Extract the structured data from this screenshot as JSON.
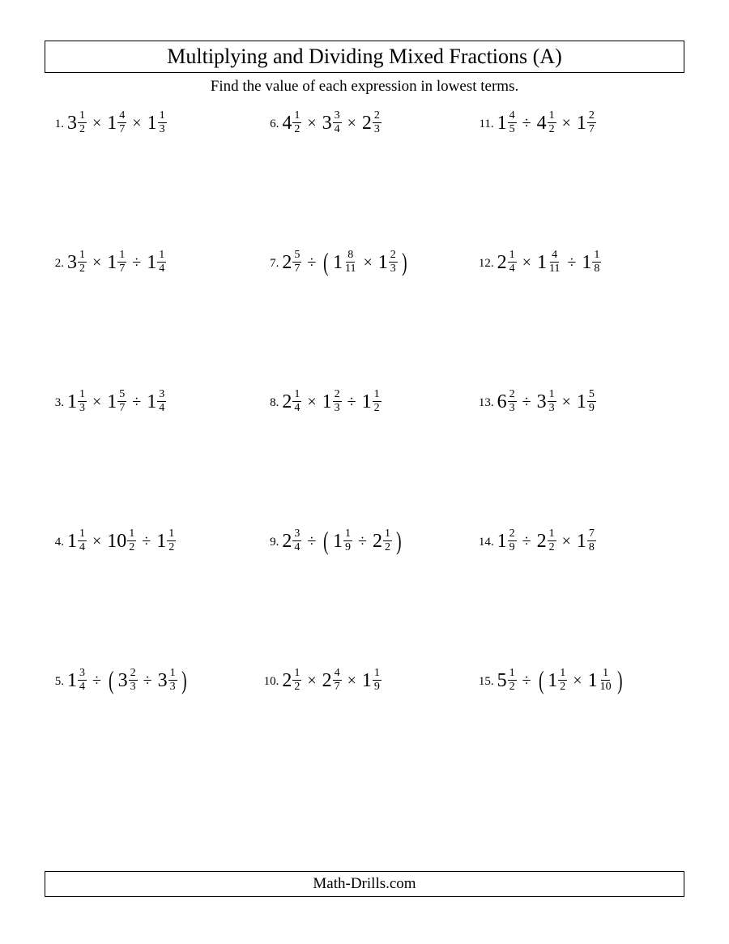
{
  "title": "Multiplying and Dividing Mixed Fractions (A)",
  "subtitle": "Find the value of each expression in lowest terms.",
  "footer": "Math-Drills.com",
  "operators": {
    "mult": "×",
    "div": "÷"
  },
  "problems": [
    {
      "n": "1.",
      "parts": [
        {
          "t": "m",
          "w": "3",
          "a": "1",
          "b": "2"
        },
        {
          "t": "op",
          "v": "mult"
        },
        {
          "t": "m",
          "w": "1",
          "a": "4",
          "b": "7"
        },
        {
          "t": "op",
          "v": "mult"
        },
        {
          "t": "m",
          "w": "1",
          "a": "1",
          "b": "3"
        }
      ]
    },
    {
      "n": "2.",
      "parts": [
        {
          "t": "m",
          "w": "3",
          "a": "1",
          "b": "2"
        },
        {
          "t": "op",
          "v": "mult"
        },
        {
          "t": "m",
          "w": "1",
          "a": "1",
          "b": "7"
        },
        {
          "t": "op",
          "v": "div"
        },
        {
          "t": "m",
          "w": "1",
          "a": "1",
          "b": "4"
        }
      ]
    },
    {
      "n": "3.",
      "parts": [
        {
          "t": "m",
          "w": "1",
          "a": "1",
          "b": "3"
        },
        {
          "t": "op",
          "v": "mult"
        },
        {
          "t": "m",
          "w": "1",
          "a": "5",
          "b": "7"
        },
        {
          "t": "op",
          "v": "div"
        },
        {
          "t": "m",
          "w": "1",
          "a": "3",
          "b": "4"
        }
      ]
    },
    {
      "n": "4.",
      "parts": [
        {
          "t": "m",
          "w": "1",
          "a": "1",
          "b": "4"
        },
        {
          "t": "op",
          "v": "mult"
        },
        {
          "t": "m",
          "w": "10",
          "a": "1",
          "b": "2"
        },
        {
          "t": "op",
          "v": "div"
        },
        {
          "t": "m",
          "w": "1",
          "a": "1",
          "b": "2"
        }
      ]
    },
    {
      "n": "5.",
      "parts": [
        {
          "t": "m",
          "w": "1",
          "a": "3",
          "b": "4"
        },
        {
          "t": "op",
          "v": "div"
        },
        {
          "t": "lp"
        },
        {
          "t": "m",
          "w": "3",
          "a": "2",
          "b": "3"
        },
        {
          "t": "op",
          "v": "div"
        },
        {
          "t": "m",
          "w": "3",
          "a": "1",
          "b": "3"
        },
        {
          "t": "rp"
        }
      ]
    },
    {
      "n": "6.",
      "parts": [
        {
          "t": "m",
          "w": "4",
          "a": "1",
          "b": "2"
        },
        {
          "t": "op",
          "v": "mult"
        },
        {
          "t": "m",
          "w": "3",
          "a": "3",
          "b": "4"
        },
        {
          "t": "op",
          "v": "mult"
        },
        {
          "t": "m",
          "w": "2",
          "a": "2",
          "b": "3"
        }
      ]
    },
    {
      "n": "7.",
      "parts": [
        {
          "t": "m",
          "w": "2",
          "a": "5",
          "b": "7"
        },
        {
          "t": "op",
          "v": "div"
        },
        {
          "t": "lp"
        },
        {
          "t": "m",
          "w": "1",
          "a": "8",
          "b": "11"
        },
        {
          "t": "op",
          "v": "mult"
        },
        {
          "t": "m",
          "w": "1",
          "a": "2",
          "b": "3"
        },
        {
          "t": "rp"
        }
      ]
    },
    {
      "n": "8.",
      "parts": [
        {
          "t": "m",
          "w": "2",
          "a": "1",
          "b": "4"
        },
        {
          "t": "op",
          "v": "mult"
        },
        {
          "t": "m",
          "w": "1",
          "a": "2",
          "b": "3"
        },
        {
          "t": "op",
          "v": "div"
        },
        {
          "t": "m",
          "w": "1",
          "a": "1",
          "b": "2"
        }
      ]
    },
    {
      "n": "9.",
      "parts": [
        {
          "t": "m",
          "w": "2",
          "a": "3",
          "b": "4"
        },
        {
          "t": "op",
          "v": "div"
        },
        {
          "t": "lp"
        },
        {
          "t": "m",
          "w": "1",
          "a": "1",
          "b": "9"
        },
        {
          "t": "op",
          "v": "div"
        },
        {
          "t": "m",
          "w": "2",
          "a": "1",
          "b": "2"
        },
        {
          "t": "rp"
        }
      ]
    },
    {
      "n": "10.",
      "parts": [
        {
          "t": "m",
          "w": "2",
          "a": "1",
          "b": "2"
        },
        {
          "t": "op",
          "v": "mult"
        },
        {
          "t": "m",
          "w": "2",
          "a": "4",
          "b": "7"
        },
        {
          "t": "op",
          "v": "mult"
        },
        {
          "t": "m",
          "w": "1",
          "a": "1",
          "b": "9"
        }
      ]
    },
    {
      "n": "11.",
      "parts": [
        {
          "t": "m",
          "w": "1",
          "a": "4",
          "b": "5"
        },
        {
          "t": "op",
          "v": "div"
        },
        {
          "t": "m",
          "w": "4",
          "a": "1",
          "b": "2"
        },
        {
          "t": "op",
          "v": "mult"
        },
        {
          "t": "m",
          "w": "1",
          "a": "2",
          "b": "7"
        }
      ]
    },
    {
      "n": "12.",
      "parts": [
        {
          "t": "m",
          "w": "2",
          "a": "1",
          "b": "4"
        },
        {
          "t": "op",
          "v": "mult"
        },
        {
          "t": "m",
          "w": "1",
          "a": "4",
          "b": "11"
        },
        {
          "t": "op",
          "v": "div"
        },
        {
          "t": "m",
          "w": "1",
          "a": "1",
          "b": "8"
        }
      ]
    },
    {
      "n": "13.",
      "parts": [
        {
          "t": "m",
          "w": "6",
          "a": "2",
          "b": "3"
        },
        {
          "t": "op",
          "v": "div"
        },
        {
          "t": "m",
          "w": "3",
          "a": "1",
          "b": "3"
        },
        {
          "t": "op",
          "v": "mult"
        },
        {
          "t": "m",
          "w": "1",
          "a": "5",
          "b": "9"
        }
      ]
    },
    {
      "n": "14.",
      "parts": [
        {
          "t": "m",
          "w": "1",
          "a": "2",
          "b": "9"
        },
        {
          "t": "op",
          "v": "div"
        },
        {
          "t": "m",
          "w": "2",
          "a": "1",
          "b": "2"
        },
        {
          "t": "op",
          "v": "mult"
        },
        {
          "t": "m",
          "w": "1",
          "a": "7",
          "b": "8"
        }
      ]
    },
    {
      "n": "15.",
      "parts": [
        {
          "t": "m",
          "w": "5",
          "a": "1",
          "b": "2"
        },
        {
          "t": "op",
          "v": "div"
        },
        {
          "t": "lp"
        },
        {
          "t": "m",
          "w": "1",
          "a": "1",
          "b": "2"
        },
        {
          "t": "op",
          "v": "mult"
        },
        {
          "t": "m",
          "w": "1",
          "a": "1",
          "b": "10"
        },
        {
          "t": "rp"
        }
      ]
    }
  ],
  "layout": {
    "columns": 3,
    "rows": 5,
    "order": "column-major"
  }
}
